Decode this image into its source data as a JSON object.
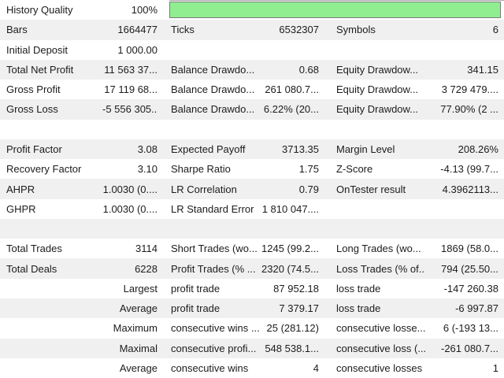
{
  "app": {
    "name": "Strategy Tester Backtest Results"
  },
  "colors": {
    "stripe": "#f0f0f0",
    "text": "#1c1c1c",
    "progress_fill": "#90ee90",
    "progress_border": "#7a7a7a"
  },
  "progress_bar": {
    "metric": "History Quality",
    "fill_percent": 100
  },
  "table": {
    "rows": [
      {
        "c1": "History Quality",
        "c2": "100%",
        "c3": "",
        "c4": "",
        "c5": "",
        "c6": ""
      },
      {
        "c1": "Bars",
        "c2": "1664477",
        "c3": "Ticks",
        "c4": "6532307",
        "c5": "Symbols",
        "c6": "6"
      },
      {
        "c1": "Initial Deposit",
        "c2": "1 000.00",
        "c3": "",
        "c4": "",
        "c5": "",
        "c6": ""
      },
      {
        "c1": "Total Net Profit",
        "c2": "11 563 37...",
        "c3": "Balance Drawdo...",
        "c4": "0.68",
        "c5": "Equity Drawdow...",
        "c6": "341.15"
      },
      {
        "c1": "Gross Profit",
        "c2": "17 119 68...",
        "c3": "Balance Drawdo...",
        "c4": "261 080.7...",
        "c5": "Equity Drawdow...",
        "c6": "3 729 479...."
      },
      {
        "c1": "Gross Loss",
        "c2": "-5 556 305...",
        "c3": "Balance Drawdo...",
        "c4": "6.22% (20...",
        "c5": "Equity Drawdow...",
        "c6": "77.90% (2 ..."
      },
      {
        "c1": "",
        "c2": "",
        "c3": "",
        "c4": "",
        "c5": "",
        "c6": ""
      },
      {
        "c1": "Profit Factor",
        "c2": "3.08",
        "c3": "Expected Payoff",
        "c4": "3713.35",
        "c5": "Margin Level",
        "c6": "208.26%"
      },
      {
        "c1": "Recovery Factor",
        "c2": "3.10",
        "c3": "Sharpe Ratio",
        "c4": "1.75",
        "c5": "Z-Score",
        "c6": "-4.13 (99.7..."
      },
      {
        "c1": "AHPR",
        "c2": "1.0030 (0....",
        "c3": "LR Correlation",
        "c4": "0.79",
        "c5": "OnTester result",
        "c6": "4.3962113..."
      },
      {
        "c1": "GHPR",
        "c2": "1.0030 (0....",
        "c3": "LR Standard Error",
        "c4": "1 810 047....",
        "c5": "",
        "c6": ""
      },
      {
        "c1": "",
        "c2": "",
        "c3": "",
        "c4": "",
        "c5": "",
        "c6": ""
      },
      {
        "c1": "Total Trades",
        "c2": "3114",
        "c3": "Short Trades (wo...",
        "c4": "1245 (99.2...",
        "c5": "Long Trades (wo...",
        "c6": "1869 (58.0..."
      },
      {
        "c1": "Total Deals",
        "c2": "6228",
        "c3": "Profit Trades (% ...",
        "c4": "2320 (74.5...",
        "c5": "Loss Trades (% of...",
        "c6": "794 (25.50..."
      },
      {
        "c1": "",
        "c2": "Largest",
        "c3": "profit trade",
        "c4": "87 952.18",
        "c5": "loss trade",
        "c6": "-147 260.38"
      },
      {
        "c1": "",
        "c2": "Average",
        "c3": "profit trade",
        "c4": "7 379.17",
        "c5": "loss trade",
        "c6": "-6 997.87"
      },
      {
        "c1": "",
        "c2": "Maximum",
        "c3": "consecutive wins ...",
        "c4": "25 (281.12)",
        "c5": "consecutive losse...",
        "c6": "6 (-193 13..."
      },
      {
        "c1": "",
        "c2": "Maximal",
        "c3": "consecutive profi...",
        "c4": "548 538.1...",
        "c5": "consecutive loss (...",
        "c6": "-261 080.7..."
      },
      {
        "c1": "",
        "c2": "Average",
        "c3": "consecutive wins",
        "c4": "4",
        "c5": "consecutive losses",
        "c6": "1"
      }
    ]
  }
}
